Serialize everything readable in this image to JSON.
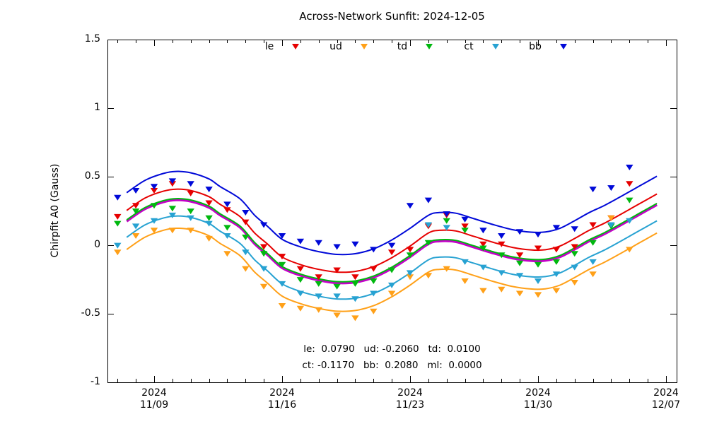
{
  "title": "Across-Network Sunfit: 2024-12-05",
  "axes": {
    "ylabel": "Chirpfit A0 (Gauss)",
    "ylim": [
      -1,
      1.5
    ],
    "y_ticks": [
      {
        "value": 1.5,
        "label": "1.5"
      },
      {
        "value": 1,
        "label": "1"
      },
      {
        "value": 0.5,
        "label": "0.5"
      },
      {
        "value": 0,
        "label": "0"
      },
      {
        "value": -0.5,
        "label": "-0.5"
      },
      {
        "value": -1,
        "label": "-1"
      }
    ],
    "x_major_ticks": [
      {
        "day": 2,
        "year": "2024",
        "date": "11/09"
      },
      {
        "day": 9,
        "year": "2024",
        "date": "11/16"
      },
      {
        "day": 16,
        "year": "2024",
        "date": "11/23"
      },
      {
        "day": 23,
        "year": "2024",
        "date": "11/30"
      },
      {
        "day": 30,
        "year": "2024",
        "date": "12/07"
      }
    ],
    "x_minor_tick_every_days": 1,
    "x_minor_tick_day_range": [
      0,
      30
    ]
  },
  "legend": {
    "entries": [
      {
        "label": "le",
        "color": "#e60000"
      },
      {
        "label": "ud",
        "color": "#ffa018"
      },
      {
        "label": "td",
        "color": "#00b80f"
      },
      {
        "label": "ct",
        "color": "#27a2d2"
      },
      {
        "label": "bb",
        "color": "#0009d8"
      }
    ]
  },
  "annotation": {
    "line1": "le:  0.0790   ud: -0.2060   td:  0.0100",
    "line2": "ct: -0.1170   bb:  0.2080   ml:  0.0000"
  },
  "chart_data": {
    "type": "scatter",
    "title": "Across-Network Sunfit: 2024-12-05",
    "xlabel": "",
    "ylabel": "Chirpfit A0 (Gauss)",
    "ylim": [
      -1,
      1.5
    ],
    "x_start_date": "2024-11-07",
    "x_unit": "days since 2024-11-07",
    "grid": false,
    "legend_position": "top-inside-horizontal",
    "marker": "filled-triangle-down",
    "fit_offsets": {
      "le": 0.079,
      "ud": -0.206,
      "td": 0.01,
      "ct": -0.117,
      "bb": 0.208,
      "ml": 0.0
    },
    "model_curve": {
      "name": "ml",
      "color": "#c400c8",
      "line_width": 3.5,
      "days": [
        0.5,
        1.5,
        2.5,
        3.2,
        4.0,
        5.0,
        5.6,
        6.7,
        7.5,
        8.2,
        9.0,
        10.0,
        11.0,
        12.0,
        13.0,
        14.0,
        15.0,
        16.0,
        17.0,
        17.6,
        18.5,
        19.5,
        20.6,
        21.6,
        22.6,
        23.4,
        24.2,
        25.0,
        25.8,
        26.6,
        27.5,
        28.5,
        29.5
      ],
      "values": [
        0.175,
        0.265,
        0.315,
        0.33,
        0.32,
        0.275,
        0.22,
        0.13,
        0.01,
        -0.07,
        -0.165,
        -0.22,
        -0.255,
        -0.275,
        -0.27,
        -0.235,
        -0.17,
        -0.085,
        0.01,
        0.03,
        0.025,
        -0.015,
        -0.06,
        -0.095,
        -0.113,
        -0.112,
        -0.085,
        -0.03,
        0.03,
        0.08,
        0.145,
        0.22,
        0.295
      ]
    },
    "series": [
      {
        "name": "le",
        "color": "#e60000",
        "offset": 0.079,
        "line_width": 2,
        "days": [
          0,
          1,
          2,
          3,
          4,
          5,
          6,
          7,
          8,
          9,
          10,
          11,
          12,
          13,
          14,
          15,
          16,
          17,
          18,
          19,
          20,
          21,
          22,
          23,
          24,
          25,
          26,
          27,
          28
        ],
        "values": [
          0.21,
          0.29,
          0.4,
          0.45,
          0.38,
          0.31,
          0.26,
          0.17,
          -0.01,
          -0.08,
          -0.17,
          -0.23,
          -0.18,
          -0.23,
          -0.17,
          -0.05,
          -0.03,
          0.14,
          0.22,
          0.14,
          0.01,
          0.01,
          -0.07,
          -0.02,
          -0.03,
          -0.01,
          0.15,
          0.2,
          0.45
        ]
      },
      {
        "name": "ud",
        "color": "#ffa018",
        "offset": -0.206,
        "line_width": 2,
        "days": [
          0,
          1,
          2,
          3,
          4,
          5,
          6,
          7,
          8,
          9,
          10,
          11,
          12,
          13,
          14,
          15,
          16,
          17,
          18,
          19,
          20,
          21,
          22,
          23,
          24,
          25,
          26,
          27,
          28
        ],
        "values": [
          -0.05,
          0.07,
          0.11,
          0.11,
          0.11,
          0.05,
          -0.06,
          -0.17,
          -0.3,
          -0.44,
          -0.46,
          -0.47,
          -0.51,
          -0.53,
          -0.48,
          -0.35,
          -0.23,
          -0.22,
          -0.17,
          -0.26,
          -0.33,
          -0.32,
          -0.35,
          -0.36,
          -0.33,
          -0.27,
          -0.21,
          0.2,
          -0.03
        ]
      },
      {
        "name": "td",
        "color": "#00b80f",
        "offset": 0.01,
        "line_width": 2,
        "days": [
          0,
          1,
          2,
          3,
          4,
          5,
          6,
          7,
          8,
          9,
          10,
          11,
          12,
          13,
          14,
          15,
          16,
          17,
          18,
          19,
          20,
          21,
          22,
          23,
          24,
          25,
          26,
          27,
          28
        ],
        "values": [
          0.16,
          0.25,
          0.29,
          0.27,
          0.25,
          0.2,
          0.13,
          0.06,
          -0.06,
          -0.14,
          -0.25,
          -0.28,
          -0.3,
          -0.28,
          -0.26,
          -0.18,
          -0.07,
          0.02,
          0.18,
          0.11,
          -0.02,
          -0.07,
          -0.13,
          -0.14,
          -0.12,
          -0.06,
          0.02,
          0.14,
          0.33
        ]
      },
      {
        "name": "ct",
        "color": "#27a2d2",
        "offset": -0.117,
        "line_width": 2,
        "days": [
          0,
          1,
          2,
          3,
          4,
          5,
          6,
          7,
          8,
          9,
          10,
          11,
          12,
          13,
          14,
          15,
          16,
          17,
          18,
          19,
          20,
          21,
          22,
          23,
          24,
          25,
          26,
          27,
          28
        ],
        "values": [
          0.0,
          0.14,
          0.18,
          0.22,
          0.2,
          0.16,
          0.07,
          -0.05,
          -0.17,
          -0.28,
          -0.35,
          -0.37,
          -0.37,
          -0.39,
          -0.35,
          -0.29,
          -0.2,
          0.15,
          0.13,
          -0.12,
          -0.16,
          -0.2,
          -0.22,
          -0.26,
          -0.21,
          -0.16,
          -0.12,
          0.15,
          0.18
        ]
      },
      {
        "name": "bb",
        "color": "#0009d8",
        "offset": 0.208,
        "line_width": 2,
        "days": [
          0,
          1,
          2,
          3,
          4,
          5,
          6,
          7,
          8,
          9,
          10,
          11,
          12,
          13,
          14,
          15,
          16,
          17,
          18,
          19,
          20,
          21,
          22,
          23,
          24,
          25,
          26,
          27,
          28
        ],
        "values": [
          0.35,
          0.4,
          0.43,
          0.47,
          0.45,
          0.41,
          0.3,
          0.24,
          0.15,
          0.07,
          0.03,
          0.02,
          -0.01,
          0.01,
          -0.03,
          0.0,
          0.29,
          0.33,
          0.23,
          0.19,
          0.11,
          0.07,
          0.1,
          0.08,
          0.13,
          0.12,
          0.41,
          0.42,
          0.57
        ]
      }
    ]
  }
}
